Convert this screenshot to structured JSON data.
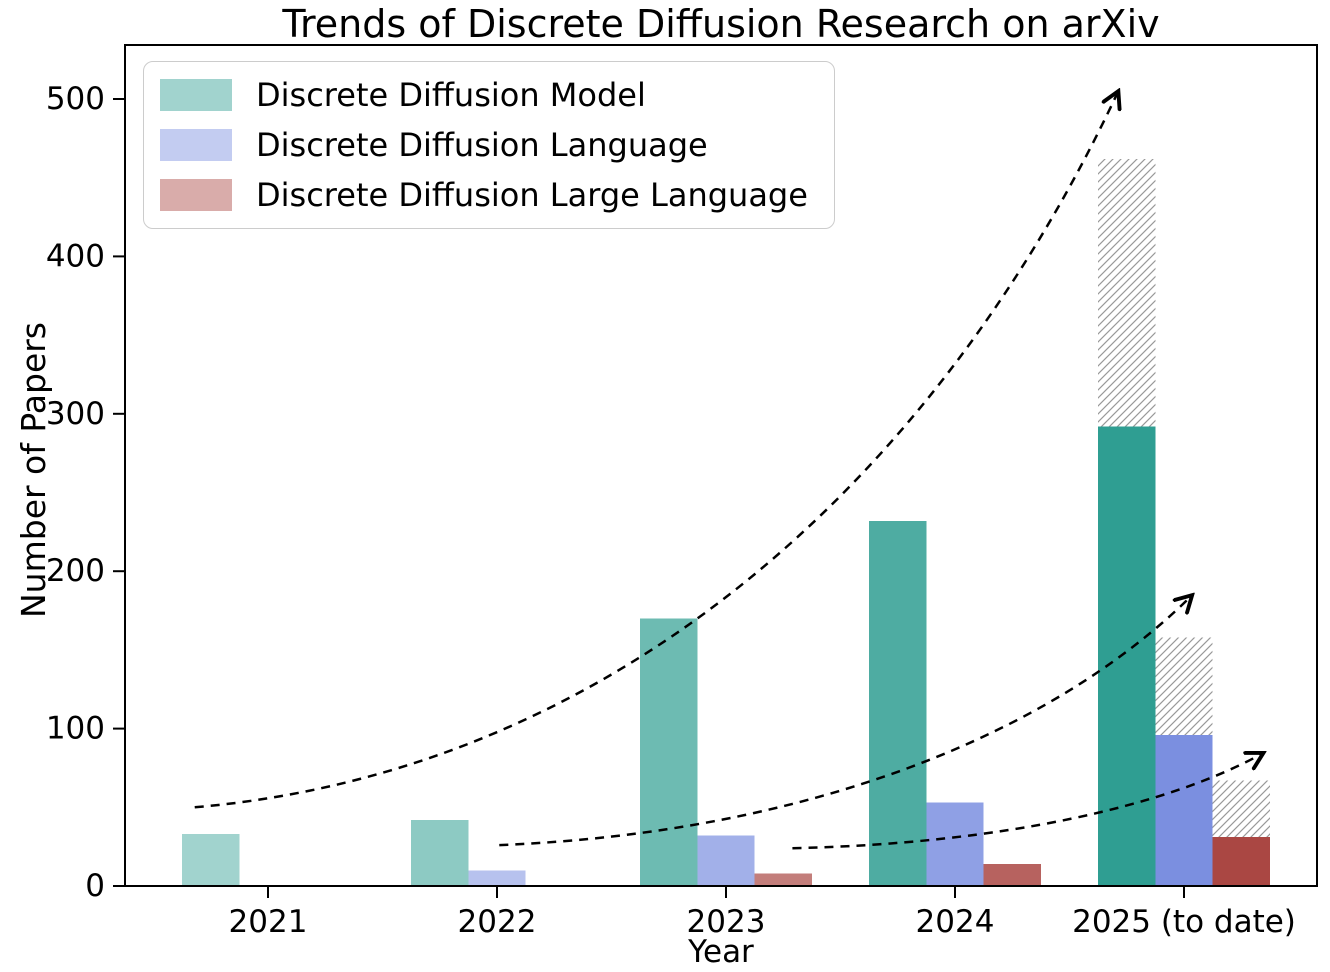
{
  "chart_data": {
    "type": "bar",
    "title": "Trends of Discrete Diffusion Research on arXiv",
    "xlabel": "Year",
    "ylabel": "Number of Papers",
    "categories": [
      "2021",
      "2022",
      "2023",
      "2024",
      "2025 (to date)"
    ],
    "series": [
      {
        "key": "model",
        "name": "Discrete Diffusion Model",
        "color": "#2f9e92",
        "values": [
          33,
          42,
          170,
          232,
          292
        ],
        "projected_total_2025": 462
      },
      {
        "key": "language",
        "name": "Discrete Diffusion Language",
        "color": "#7b8fe0",
        "values": [
          0,
          10,
          32,
          53,
          96
        ],
        "projected_total_2025": 158
      },
      {
        "key": "large-language",
        "name": "Discrete Diffusion Large Language",
        "color": "#aa4743",
        "values": [
          0,
          0,
          8,
          14,
          31
        ],
        "projected_total_2025": 67
      }
    ],
    "year_alphas": [
      0.45,
      0.55,
      0.7,
      0.85,
      1.0
    ],
    "legend_swatch_alpha": 0.45,
    "yticks": [
      0,
      100,
      200,
      300,
      400,
      500
    ],
    "ylim": [
      0,
      534
    ],
    "grid": false,
    "legend_position": "upper left",
    "trend_arrows": [
      {
        "x1": -0.32,
        "v1": 50,
        "x2": 3.71,
        "v2": 504
      },
      {
        "x1": 1.01,
        "v1": 26,
        "x2": 4.03,
        "v2": 184
      },
      {
        "x1": 2.29,
        "v1": 24,
        "x2": 4.34,
        "v2": 84
      }
    ]
  }
}
